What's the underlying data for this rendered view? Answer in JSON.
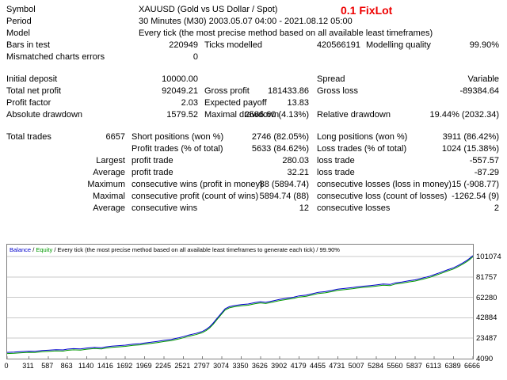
{
  "badge": {
    "text": "0.1 FixLot"
  },
  "colors": {
    "badge": "#ee0000",
    "balance": "#0000cc",
    "equity": "#009900",
    "grid": "#c8c8c8",
    "axis": "#808080"
  },
  "report": {
    "rows": [
      {
        "cells": [
          {
            "t": "Symbol",
            "c": "l0"
          },
          {
            "t": "XAUUSD (Gold vs US Dollar / Spot)",
            "c": "l175"
          }
        ]
      },
      {
        "cells": [
          {
            "t": "Period",
            "c": "l0"
          },
          {
            "t": "30 Minutes (M30) 2003.05.07 04:00 - 2021.08.12 05:00",
            "c": "l175"
          }
        ]
      },
      {
        "cells": [
          {
            "t": "Model",
            "c": "l0"
          },
          {
            "t": "Every tick (the most precise method based on all available least timeframes)",
            "c": "l175"
          }
        ]
      },
      {
        "cells": [
          {
            "t": "Bars in test",
            "c": "l0"
          },
          {
            "t": "220949",
            "c": "r250"
          },
          {
            "t": "Ticks modelled",
            "c": "l258"
          },
          {
            "t": "420566191",
            "c": "r455"
          },
          {
            "t": "Modelling quality",
            "c": "l462"
          },
          {
            "t": "99.90%",
            "c": "r630"
          }
        ]
      },
      {
        "cells": [
          {
            "t": "Mismatched charts errors",
            "c": "l0"
          },
          {
            "t": "0",
            "c": "r250"
          }
        ]
      },
      {
        "spacer": true
      },
      {
        "cells": [
          {
            "t": "Initial deposit",
            "c": "l0"
          },
          {
            "t": "10000.00",
            "c": "r250"
          },
          {
            "t": "Spread",
            "c": "l400"
          },
          {
            "t": "Variable",
            "c": "r630"
          }
        ]
      },
      {
        "cells": [
          {
            "t": "Total net profit",
            "c": "l0"
          },
          {
            "t": "92049.21",
            "c": "r250"
          },
          {
            "t": "Gross profit",
            "c": "l258"
          },
          {
            "t": "181433.86",
            "c": "r390"
          },
          {
            "t": "Gross loss",
            "c": "l400"
          },
          {
            "t": "-89384.64",
            "c": "r630"
          }
        ]
      },
      {
        "cells": [
          {
            "t": "Profit factor",
            "c": "l0"
          },
          {
            "t": "2.03",
            "c": "r250"
          },
          {
            "t": "Expected payoff",
            "c": "l258"
          },
          {
            "t": "13.83",
            "c": "r390"
          }
        ]
      },
      {
        "cells": [
          {
            "t": "Absolute drawdown",
            "c": "l0"
          },
          {
            "t": "1579.52",
            "c": "r250"
          },
          {
            "t": "Maximal drawdown",
            "c": "l258"
          },
          {
            "t": "2586.60 (4.13%)",
            "c": "r390"
          },
          {
            "t": "Relative drawdown",
            "c": "l400"
          },
          {
            "t": "19.44% (2032.34)",
            "c": "r630"
          }
        ]
      },
      {
        "spacer": true
      },
      {
        "cells": [
          {
            "t": "Total trades",
            "c": "l0"
          },
          {
            "t": "6657",
            "c": "r158"
          },
          {
            "t": "Short positions (won %)",
            "c": "l166"
          },
          {
            "t": "2746 (82.05%)",
            "c": "r390"
          },
          {
            "t": "Long positions (won %)",
            "c": "l400"
          },
          {
            "t": "3911 (86.42%)",
            "c": "r630"
          }
        ]
      },
      {
        "cells": [
          {
            "t": "Profit trades (% of total)",
            "c": "l166"
          },
          {
            "t": "5633 (84.62%)",
            "c": "r390"
          },
          {
            "t": "Loss trades (% of total)",
            "c": "l400"
          },
          {
            "t": "1024 (15.38%)",
            "c": "r630"
          }
        ]
      },
      {
        "cells": [
          {
            "t": "Largest",
            "c": "r158"
          },
          {
            "t": "profit trade",
            "c": "l166"
          },
          {
            "t": "280.03",
            "c": "r390"
          },
          {
            "t": "loss trade",
            "c": "l400"
          },
          {
            "t": "-557.57",
            "c": "r630"
          }
        ]
      },
      {
        "cells": [
          {
            "t": "Average",
            "c": "r158"
          },
          {
            "t": "profit trade",
            "c": "l166"
          },
          {
            "t": "32.21",
            "c": "r390"
          },
          {
            "t": "loss trade",
            "c": "l400"
          },
          {
            "t": "-87.29",
            "c": "r630"
          }
        ]
      },
      {
        "cells": [
          {
            "t": "Maximum",
            "c": "r158"
          },
          {
            "t": "consecutive wins (profit in money)",
            "c": "l166"
          },
          {
            "t": "88 (5894.74)",
            "c": "r390"
          },
          {
            "t": "consecutive losses (loss in money)",
            "c": "l400"
          },
          {
            "t": "15 (-908.77)",
            "c": "r630"
          }
        ]
      },
      {
        "cells": [
          {
            "t": "Maximal",
            "c": "r158"
          },
          {
            "t": "consecutive profit (count of wins)",
            "c": "l166"
          },
          {
            "t": "5894.74 (88)",
            "c": "r390"
          },
          {
            "t": "consecutive loss (count of losses)",
            "c": "l400"
          },
          {
            "t": "-1262.54 (9)",
            "c": "r630"
          }
        ]
      },
      {
        "cells": [
          {
            "t": "Average",
            "c": "r158"
          },
          {
            "t": "consecutive wins",
            "c": "l166"
          },
          {
            "t": "12",
            "c": "r390"
          },
          {
            "t": "consecutive losses",
            "c": "l400"
          },
          {
            "t": "2",
            "c": "r630"
          }
        ]
      }
    ]
  },
  "chart_data": {
    "type": "line",
    "title": "Balance / Equity curve",
    "legend": {
      "balance": "Balance",
      "equity": "Equity",
      "sep": " / ",
      "desc": "Every tick (the most precise method based on all available least timeframes to generate each tick)",
      "quality": "99.90%"
    },
    "x_max": 6666,
    "y_bottom": 4090,
    "y_top": 112500,
    "y_ticks": [
      4090,
      23487,
      42884,
      62280,
      81757,
      101074
    ],
    "x_ticks": [
      0,
      311,
      587,
      863,
      1140,
      1416,
      1692,
      1969,
      2245,
      2521,
      2797,
      3074,
      3350,
      3626,
      3902,
      4179,
      4455,
      4731,
      5007,
      5284,
      5560,
      5837,
      6113,
      6389,
      6666
    ],
    "points": [
      [
        0,
        10000
      ],
      [
        100,
        10300
      ],
      [
        200,
        10800
      ],
      [
        311,
        11200
      ],
      [
        400,
        11000
      ],
      [
        500,
        11800
      ],
      [
        587,
        12100
      ],
      [
        700,
        12600
      ],
      [
        800,
        12400
      ],
      [
        863,
        13100
      ],
      [
        950,
        13600
      ],
      [
        1050,
        13300
      ],
      [
        1140,
        14200
      ],
      [
        1250,
        14800
      ],
      [
        1350,
        14500
      ],
      [
        1416,
        15300
      ],
      [
        1500,
        15900
      ],
      [
        1600,
        16400
      ],
      [
        1692,
        16900
      ],
      [
        1800,
        17800
      ],
      [
        1900,
        18300
      ],
      [
        1969,
        19000
      ],
      [
        2050,
        19600
      ],
      [
        2150,
        20500
      ],
      [
        2245,
        21500
      ],
      [
        2350,
        22400
      ],
      [
        2450,
        23800
      ],
      [
        2521,
        25000
      ],
      [
        2600,
        26500
      ],
      [
        2700,
        28000
      ],
      [
        2797,
        30000
      ],
      [
        2850,
        32000
      ],
      [
        2900,
        34500
      ],
      [
        2950,
        38000
      ],
      [
        3000,
        42000
      ],
      [
        3050,
        46000
      ],
      [
        3074,
        48000
      ],
      [
        3120,
        51500
      ],
      [
        3180,
        53500
      ],
      [
        3250,
        54500
      ],
      [
        3350,
        55500
      ],
      [
        3450,
        56000
      ],
      [
        3550,
        57500
      ],
      [
        3626,
        58200
      ],
      [
        3700,
        57600
      ],
      [
        3800,
        59000
      ],
      [
        3902,
        60500
      ],
      [
        4000,
        61500
      ],
      [
        4100,
        62500
      ],
      [
        4179,
        63800
      ],
      [
        4280,
        64500
      ],
      [
        4380,
        66000
      ],
      [
        4455,
        67200
      ],
      [
        4550,
        67800
      ],
      [
        4650,
        69000
      ],
      [
        4731,
        70200
      ],
      [
        4850,
        71000
      ],
      [
        4950,
        71800
      ],
      [
        5007,
        72300
      ],
      [
        5100,
        73000
      ],
      [
        5200,
        73600
      ],
      [
        5284,
        74200
      ],
      [
        5380,
        75000
      ],
      [
        5480,
        74600
      ],
      [
        5560,
        76200
      ],
      [
        5650,
        77000
      ],
      [
        5750,
        78200
      ],
      [
        5837,
        79000
      ],
      [
        5950,
        80800
      ],
      [
        6050,
        82500
      ],
      [
        6113,
        84000
      ],
      [
        6200,
        86000
      ],
      [
        6300,
        88500
      ],
      [
        6389,
        90500
      ],
      [
        6450,
        92500
      ],
      [
        6520,
        95000
      ],
      [
        6580,
        97500
      ],
      [
        6620,
        99500
      ],
      [
        6666,
        102049
      ]
    ]
  }
}
